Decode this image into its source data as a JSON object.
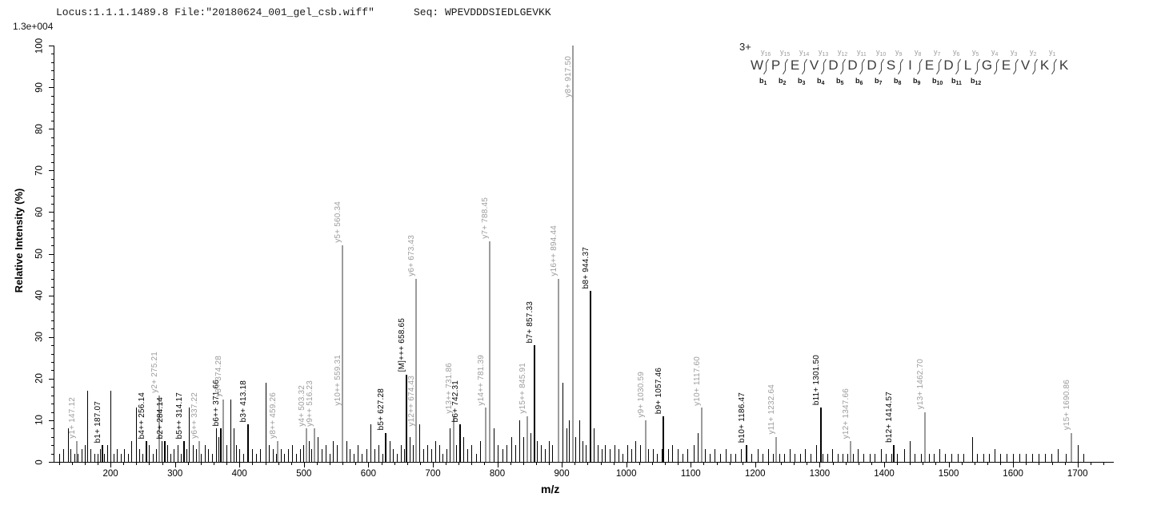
{
  "header": {
    "locus_file": "Locus:1.1.1.1489.8 File:\"20180624_001_gel_csb.wiff\"",
    "seq": "Seq: WPEVDDDSIEDLGEVKK"
  },
  "colors": {
    "y_ion": "#9c9c9c",
    "b_ion": "#000000",
    "precursor": "#000000",
    "unlabeled": "#000000",
    "axis": "#000000"
  },
  "peptide_diagram": {
    "charge": "3+",
    "residues": [
      "W",
      "P",
      "E",
      "V",
      "D",
      "D",
      "D",
      "S",
      "I",
      "E",
      "D",
      "L",
      "G",
      "E",
      "V",
      "K",
      "K"
    ],
    "y_ions": [
      "y16",
      "y15",
      "y14",
      "y13",
      "y12",
      "y11",
      "y10",
      "y9",
      "y8",
      "y7",
      "y6",
      "y5",
      "y4",
      "y3",
      "y2",
      "y1"
    ],
    "b_ions": [
      "b1",
      "b2",
      "b3",
      "b4",
      "b5",
      "b6",
      "b7",
      "b8",
      "b9",
      "b10",
      "b11",
      "b12"
    ]
  },
  "chart_data": {
    "type": "bar",
    "title": "MS/MS fragment ion spectrum",
    "xlabel": "m/z",
    "ylabel": "Relative  Intensity (%)",
    "scale_note": "1.3e+004",
    "xlim": [
      113,
      1750
    ],
    "ylim": [
      0,
      100
    ],
    "x_ticks": [
      200,
      300,
      400,
      500,
      600,
      700,
      800,
      900,
      1000,
      1100,
      1200,
      1300,
      1400,
      1500,
      1600,
      1700
    ],
    "x_minor_step": 20,
    "y_ticks": [
      0,
      10,
      20,
      30,
      40,
      50,
      60,
      70,
      80,
      90,
      100
    ],
    "y_minor_step": 2,
    "grid": false,
    "legend": "none",
    "labeled_peaks": [
      {
        "label": "y1+ 147.12",
        "mz": 147.12,
        "intensity": 5,
        "series": "y"
      },
      {
        "label": "b1+ 187.07",
        "mz": 187.07,
        "intensity": 4,
        "series": "b"
      },
      {
        "label": "b4++ 256.14",
        "mz": 256.14,
        "intensity": 5,
        "series": "b"
      },
      {
        "label": "y2+ 275.21",
        "mz": 275.21,
        "intensity": 16,
        "series": "y"
      },
      {
        "label": "b2+ 284.14",
        "mz": 284.14,
        "intensity": 5,
        "series": "b"
      },
      {
        "label": "b5++ 314.17",
        "mz": 314.17,
        "intensity": 5,
        "series": "b"
      },
      {
        "label": "y6++ 337.22",
        "mz": 337.22,
        "intensity": 5,
        "series": "y"
      },
      {
        "label": "b6++ 371.66",
        "mz": 371.66,
        "intensity": 8,
        "series": "b"
      },
      {
        "label": "y3+ 374.28",
        "mz": 374.28,
        "intensity": 15,
        "series": "y"
      },
      {
        "label": "b3+ 413.18",
        "mz": 413.18,
        "intensity": 9,
        "series": "b"
      },
      {
        "label": "y8++ 459.26",
        "mz": 459.26,
        "intensity": 5,
        "series": "y"
      },
      {
        "label": "y4+ 503.32",
        "mz": 503.32,
        "intensity": 8,
        "series": "y"
      },
      {
        "label": "y9++ 516.23",
        "mz": 516.23,
        "intensity": 8,
        "series": "y"
      },
      {
        "label": "y10++ 559.31",
        "mz": 559.31,
        "intensity": 13,
        "series": "y"
      },
      {
        "label": "y5+ 560.34",
        "mz": 560.34,
        "intensity": 52,
        "series": "y"
      },
      {
        "label": "b5+ 627.28",
        "mz": 627.28,
        "intensity": 7,
        "series": "b"
      },
      {
        "label": "[M]+++ 658.65",
        "mz": 658.65,
        "intensity": 21,
        "series": "M"
      },
      {
        "label": "y6+ 673.43",
        "mz": 673.43,
        "intensity": 44,
        "series": "y"
      },
      {
        "label": "y12++ 674.43",
        "mz": 674.43,
        "intensity": 8,
        "series": "y"
      },
      {
        "label": "y13++ 731.86",
        "mz": 731.86,
        "intensity": 11,
        "series": "y"
      },
      {
        "label": "b6+ 742.31",
        "mz": 742.31,
        "intensity": 9,
        "series": "b"
      },
      {
        "label": "y14++ 781.39",
        "mz": 781.39,
        "intensity": 13,
        "series": "y"
      },
      {
        "label": "y7+ 788.45",
        "mz": 788.45,
        "intensity": 53,
        "series": "y"
      },
      {
        "label": "y15++ 845.91",
        "mz": 845.91,
        "intensity": 11,
        "series": "y"
      },
      {
        "label": "b7+ 857.33",
        "mz": 857.33,
        "intensity": 28,
        "series": "b"
      },
      {
        "label": "y16++ 894.44",
        "mz": 894.44,
        "intensity": 44,
        "series": "y"
      },
      {
        "label": "y8+ 917.50",
        "mz": 917.5,
        "intensity": 100,
        "series": "y",
        "label_at": 87
      },
      {
        "label": "b8+ 944.37",
        "mz": 944.37,
        "intensity": 41,
        "series": "b"
      },
      {
        "label": "y9+ 1030.59",
        "mz": 1030.59,
        "intensity": 10,
        "series": "y"
      },
      {
        "label": "b9+ 1057.46",
        "mz": 1057.46,
        "intensity": 11,
        "series": "b"
      },
      {
        "label": "y10+ 1117.60",
        "mz": 1117.6,
        "intensity": 13,
        "series": "y"
      },
      {
        "label": "b10+ 1186.47",
        "mz": 1186.47,
        "intensity": 4,
        "series": "b"
      },
      {
        "label": "y11+ 1232.64",
        "mz": 1232.64,
        "intensity": 6,
        "series": "y"
      },
      {
        "label": "b11+ 1301.50",
        "mz": 1301.5,
        "intensity": 13,
        "series": "b"
      },
      {
        "label": "y12+ 1347.66",
        "mz": 1347.66,
        "intensity": 5,
        "series": "y"
      },
      {
        "label": "b12+ 1414.57",
        "mz": 1414.57,
        "intensity": 4,
        "series": "b"
      },
      {
        "label": "y13+ 1462.70",
        "mz": 1462.7,
        "intensity": 12,
        "series": "y"
      },
      {
        "label": "y15+ 1690.86",
        "mz": 1690.86,
        "intensity": 7,
        "series": "y"
      }
    ],
    "unlabeled_peaks": [
      [
        121,
        2
      ],
      [
        127,
        3
      ],
      [
        135,
        8
      ],
      [
        139,
        3
      ],
      [
        144,
        2
      ],
      [
        150,
        2
      ],
      [
        156,
        3
      ],
      [
        161,
        4
      ],
      [
        165,
        17
      ],
      [
        170,
        3
      ],
      [
        175,
        2
      ],
      [
        180,
        2
      ],
      [
        184,
        3
      ],
      [
        191,
        2
      ],
      [
        196,
        4
      ],
      [
        200,
        17
      ],
      [
        205,
        2
      ],
      [
        210,
        3
      ],
      [
        216,
        2
      ],
      [
        222,
        3
      ],
      [
        228,
        2
      ],
      [
        233,
        5
      ],
      [
        240,
        13
      ],
      [
        245,
        3
      ],
      [
        250,
        2
      ],
      [
        260,
        4
      ],
      [
        266,
        2
      ],
      [
        271,
        3
      ],
      [
        280,
        5
      ],
      [
        288,
        4
      ],
      [
        293,
        2
      ],
      [
        298,
        3
      ],
      [
        305,
        4
      ],
      [
        310,
        2
      ],
      [
        318,
        3
      ],
      [
        322,
        13
      ],
      [
        328,
        4
      ],
      [
        333,
        3
      ],
      [
        341,
        2
      ],
      [
        347,
        4
      ],
      [
        352,
        3
      ],
      [
        358,
        2
      ],
      [
        364,
        8
      ],
      [
        368,
        6
      ],
      [
        380,
        4
      ],
      [
        386,
        15
      ],
      [
        391,
        8
      ],
      [
        395,
        4
      ],
      [
        400,
        3
      ],
      [
        406,
        2
      ],
      [
        420,
        3
      ],
      [
        426,
        2
      ],
      [
        433,
        3
      ],
      [
        441,
        19
      ],
      [
        446,
        4
      ],
      [
        452,
        3
      ],
      [
        457,
        2
      ],
      [
        465,
        3
      ],
      [
        470,
        2
      ],
      [
        476,
        3
      ],
      [
        482,
        4
      ],
      [
        488,
        2
      ],
      [
        494,
        3
      ],
      [
        500,
        4
      ],
      [
        508,
        5
      ],
      [
        512,
        3
      ],
      [
        522,
        6
      ],
      [
        528,
        3
      ],
      [
        534,
        4
      ],
      [
        540,
        2
      ],
      [
        546,
        5
      ],
      [
        552,
        4
      ],
      [
        566,
        5
      ],
      [
        571,
        3
      ],
      [
        578,
        2
      ],
      [
        584,
        4
      ],
      [
        590,
        2
      ],
      [
        597,
        3
      ],
      [
        604,
        9
      ],
      [
        610,
        3
      ],
      [
        616,
        4
      ],
      [
        622,
        2
      ],
      [
        633,
        5
      ],
      [
        638,
        3
      ],
      [
        645,
        2
      ],
      [
        651,
        4
      ],
      [
        656,
        3
      ],
      [
        665,
        6
      ],
      [
        670,
        4
      ],
      [
        680,
        9
      ],
      [
        686,
        3
      ],
      [
        692,
        4
      ],
      [
        698,
        3
      ],
      [
        704,
        5
      ],
      [
        710,
        4
      ],
      [
        716,
        2
      ],
      [
        722,
        3
      ],
      [
        727,
        8
      ],
      [
        736,
        4
      ],
      [
        748,
        6
      ],
      [
        754,
        3
      ],
      [
        760,
        4
      ],
      [
        768,
        2
      ],
      [
        774,
        5
      ],
      [
        783,
        4
      ],
      [
        795,
        8
      ],
      [
        801,
        4
      ],
      [
        808,
        3
      ],
      [
        815,
        4
      ],
      [
        822,
        6
      ],
      [
        828,
        4
      ],
      [
        835,
        10
      ],
      [
        841,
        6
      ],
      [
        852,
        7
      ],
      [
        862,
        5
      ],
      [
        868,
        4
      ],
      [
        874,
        3
      ],
      [
        880,
        5
      ],
      [
        886,
        4
      ],
      [
        902,
        19
      ],
      [
        908,
        8
      ],
      [
        912,
        10
      ],
      [
        922,
        6
      ],
      [
        928,
        10
      ],
      [
        933,
        5
      ],
      [
        938,
        4
      ],
      [
        950,
        8
      ],
      [
        956,
        4
      ],
      [
        962,
        3
      ],
      [
        968,
        4
      ],
      [
        975,
        3
      ],
      [
        982,
        4
      ],
      [
        988,
        3
      ],
      [
        995,
        2
      ],
      [
        1002,
        4
      ],
      [
        1008,
        3
      ],
      [
        1015,
        5
      ],
      [
        1022,
        4
      ],
      [
        1035,
        3
      ],
      [
        1042,
        3
      ],
      [
        1048,
        2
      ],
      [
        1055,
        3
      ],
      [
        1065,
        3
      ],
      [
        1072,
        4
      ],
      [
        1080,
        3
      ],
      [
        1088,
        2
      ],
      [
        1095,
        3
      ],
      [
        1105,
        4
      ],
      [
        1112,
        7
      ],
      [
        1122,
        3
      ],
      [
        1130,
        2
      ],
      [
        1138,
        3
      ],
      [
        1146,
        2
      ],
      [
        1155,
        3
      ],
      [
        1162,
        2
      ],
      [
        1170,
        2
      ],
      [
        1178,
        3
      ],
      [
        1195,
        2
      ],
      [
        1205,
        3
      ],
      [
        1212,
        2
      ],
      [
        1220,
        3
      ],
      [
        1228,
        2
      ],
      [
        1238,
        2
      ],
      [
        1246,
        2
      ],
      [
        1254,
        3
      ],
      [
        1262,
        2
      ],
      [
        1270,
        2
      ],
      [
        1278,
        3
      ],
      [
        1286,
        2
      ],
      [
        1295,
        4
      ],
      [
        1305,
        2
      ],
      [
        1312,
        2
      ],
      [
        1320,
        3
      ],
      [
        1328,
        2
      ],
      [
        1336,
        2
      ],
      [
        1344,
        2
      ],
      [
        1352,
        2
      ],
      [
        1360,
        3
      ],
      [
        1368,
        2
      ],
      [
        1378,
        2
      ],
      [
        1386,
        2
      ],
      [
        1395,
        3
      ],
      [
        1403,
        2
      ],
      [
        1412,
        2
      ],
      [
        1420,
        2
      ],
      [
        1431,
        3
      ],
      [
        1440,
        5
      ],
      [
        1448,
        2
      ],
      [
        1458,
        2
      ],
      [
        1470,
        2
      ],
      [
        1478,
        2
      ],
      [
        1486,
        3
      ],
      [
        1495,
        2
      ],
      [
        1505,
        2
      ],
      [
        1515,
        2
      ],
      [
        1524,
        2
      ],
      [
        1537,
        6
      ],
      [
        1545,
        2
      ],
      [
        1555,
        2
      ],
      [
        1563,
        2
      ],
      [
        1572,
        3
      ],
      [
        1580,
        2
      ],
      [
        1590,
        2
      ],
      [
        1600,
        2
      ],
      [
        1610,
        2
      ],
      [
        1620,
        2
      ],
      [
        1630,
        2
      ],
      [
        1640,
        2
      ],
      [
        1650,
        2
      ],
      [
        1660,
        2
      ],
      [
        1670,
        3
      ],
      [
        1682,
        2
      ],
      [
        1701,
        4
      ],
      [
        1710,
        2
      ]
    ]
  }
}
